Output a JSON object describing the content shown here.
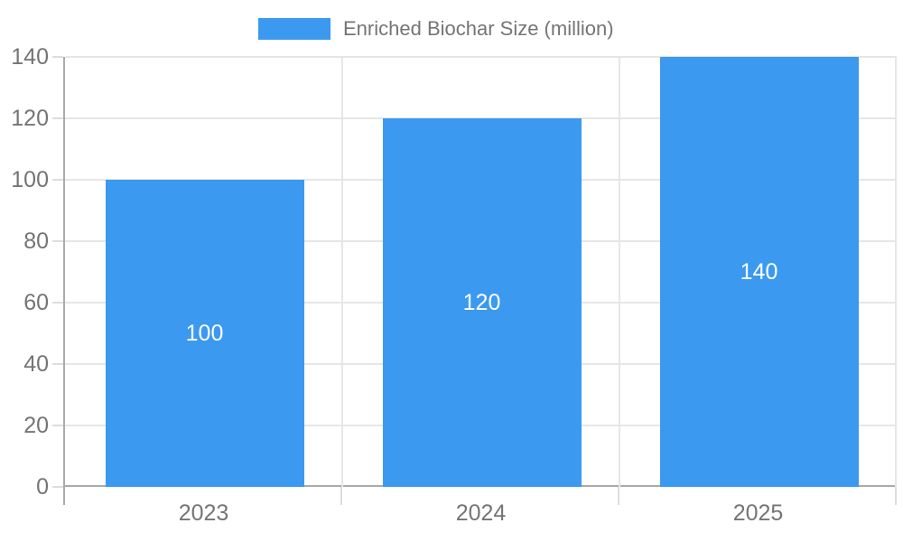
{
  "chart": {
    "legend": {
      "label": "Enriched Biochar Size (million)"
    }
  },
  "chart_data": {
    "type": "bar",
    "title": "",
    "categories": [
      "2023",
      "2024",
      "2025"
    ],
    "series": [
      {
        "name": "Enriched Biochar Size (million)",
        "values": [
          100,
          120,
          140
        ]
      }
    ],
    "data_labels": [
      100,
      120,
      140
    ],
    "xlabel": "",
    "ylabel": "",
    "ylim": [
      0,
      140
    ],
    "yticks": [
      0,
      20,
      40,
      60,
      80,
      100,
      120,
      140
    ],
    "grid": true,
    "legend_position": "top-center"
  },
  "colors": {
    "bar": "#3B99F0",
    "grid": "#e6e6e6",
    "tick": "#dddddd",
    "axis": "#ababab",
    "axis_text": "#757575",
    "bar_label_text": "#ffffff",
    "background": "#ffffff"
  }
}
